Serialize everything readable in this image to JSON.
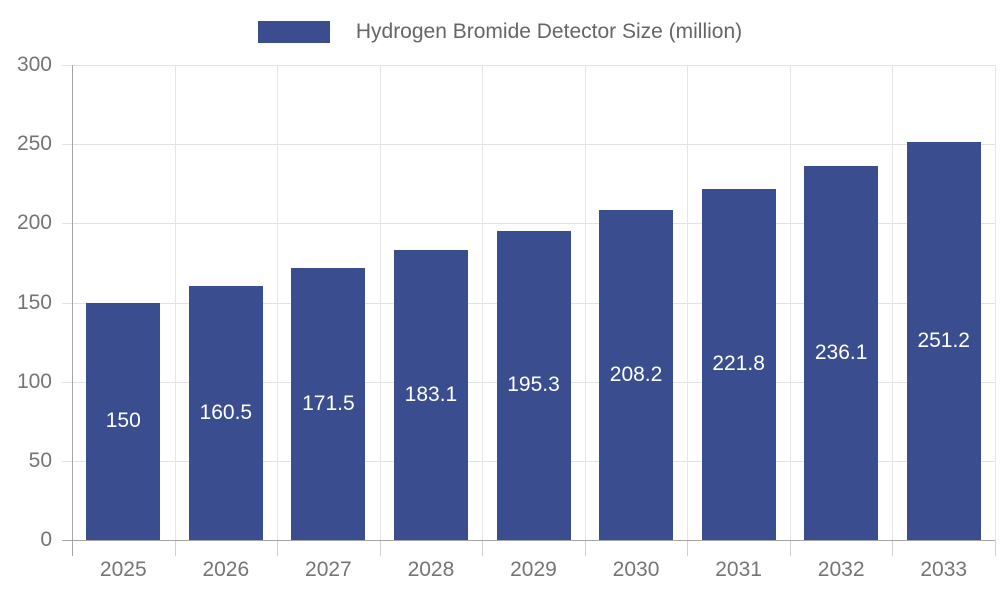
{
  "chart_data": {
    "type": "bar",
    "title": "",
    "series_name": "Hydrogen Bromide Detector Size (million)",
    "categories": [
      "2025",
      "2026",
      "2027",
      "2028",
      "2029",
      "2030",
      "2031",
      "2032",
      "2033"
    ],
    "values": [
      150,
      160.5,
      171.5,
      183.1,
      195.3,
      208.2,
      221.8,
      236.1,
      251.2
    ],
    "value_labels": [
      "150",
      "160.5",
      "171.5",
      "183.1",
      "195.3",
      "208.2",
      "221.8",
      "236.1",
      "251.2"
    ],
    "xlabel": "",
    "ylabel": "",
    "ylim": [
      0,
      300
    ],
    "y_ticks": [
      0,
      50,
      100,
      150,
      200,
      250,
      300
    ],
    "grid": true,
    "legend_position": "top",
    "bar_color": "#3A4E8F",
    "value_label_color": "#ffffff"
  }
}
